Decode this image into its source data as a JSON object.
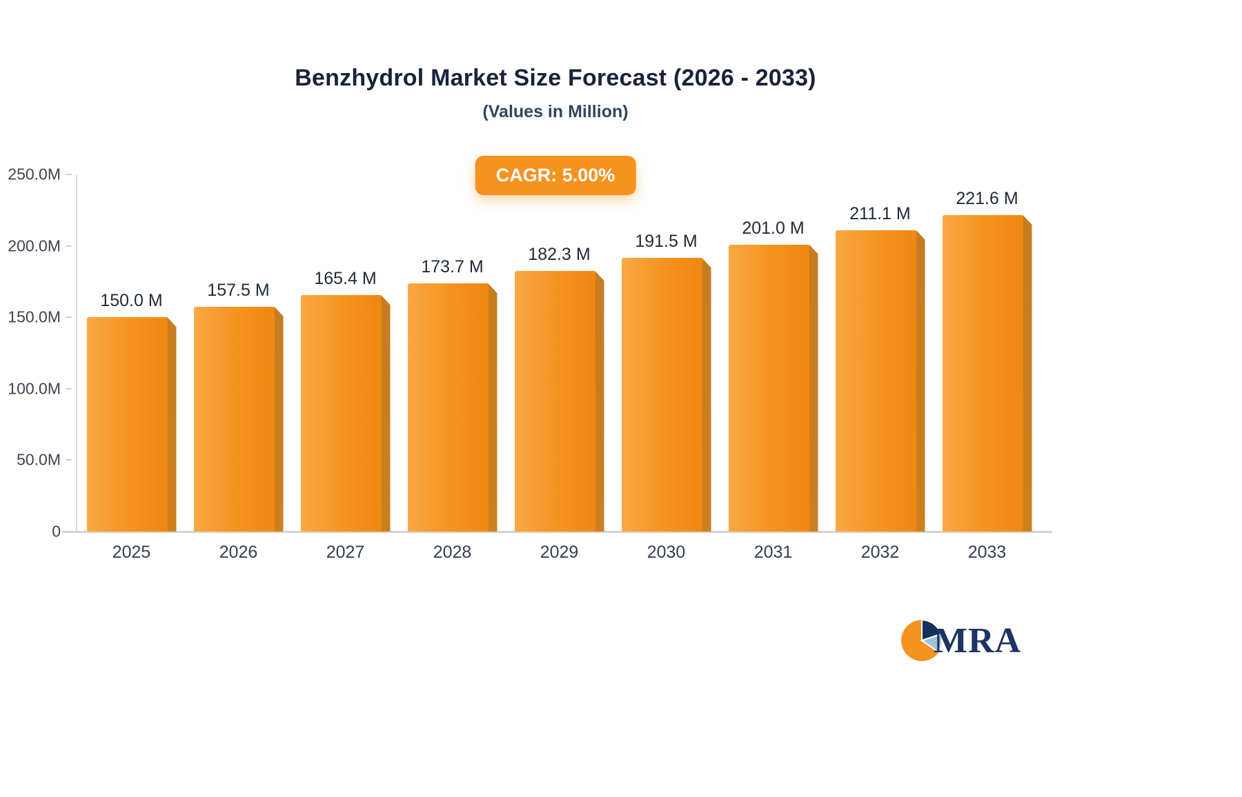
{
  "header": {
    "title": "Benzhydrol Market Size Forecast (2026 - 2033)",
    "subtitle": "(Values in Million)",
    "cagr_badge": "CAGR: 5.00%"
  },
  "chart_data": {
    "type": "bar",
    "title": "Benzhydrol Market Size Forecast (2026 - 2033)",
    "subtitle": "(Values in Million)",
    "categories": [
      "2025",
      "2026",
      "2027",
      "2028",
      "2029",
      "2030",
      "2031",
      "2032",
      "2033"
    ],
    "values": [
      150.0,
      157.5,
      165.4,
      173.7,
      182.3,
      191.5,
      201.0,
      211.1,
      221.6
    ],
    "value_labels": [
      "150.0 M",
      "157.5 M",
      "165.4 M",
      "173.7 M",
      "182.3 M",
      "191.5 M",
      "201.0 M",
      "211.1 M",
      "221.6 M"
    ],
    "ylim": [
      0,
      250
    ],
    "y_ticks": [
      "250.0M",
      "200.0M",
      "150.0M",
      "100.0M",
      "50.0M",
      "0"
    ],
    "grid": false,
    "legend": "none",
    "annotation": "CAGR: 5.00%",
    "bar_color": "#f6921e",
    "bar_side_color": "#c57c20"
  },
  "logo": {
    "text": "MRA"
  },
  "colors": {
    "accent_orange": "#f6921e",
    "title_text": "#18223a",
    "subtitle_text": "#32455f",
    "axis_text": "#3c4450",
    "value_label_text": "#1f2a37",
    "logo_navy": "#1d3461",
    "logo_lightblue": "#9fc3dd"
  }
}
